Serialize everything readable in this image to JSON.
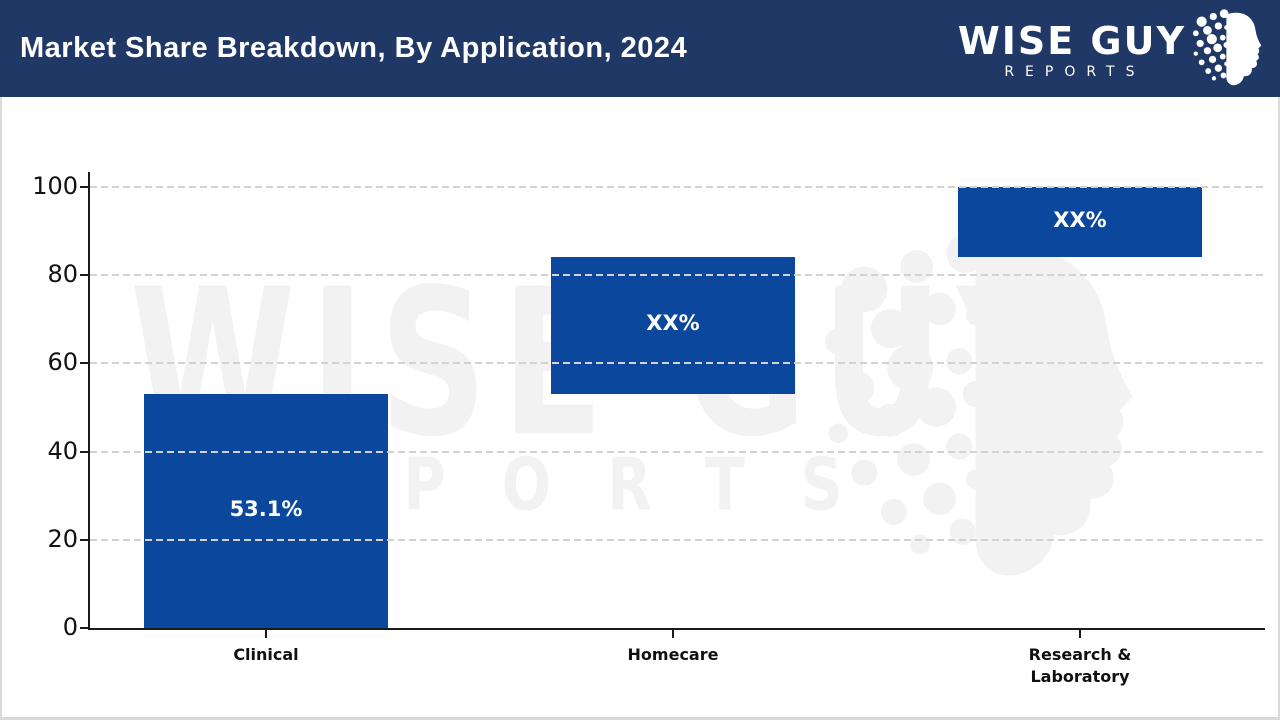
{
  "header": {
    "title": "Market Share Breakdown, By Application, 2024",
    "logo": {
      "line1": "WISE GUY",
      "line2": "REPORTS"
    }
  },
  "watermark": {
    "line1": "WISE GUY",
    "line2": "REPORTS"
  },
  "colors": {
    "header_bg": "#1f3866",
    "bar_blue": "#0a479d",
    "grid_gray": "#d2d2d2",
    "watermark_gray": "#f2f2f3",
    "axis_black": "#1a1a1a"
  },
  "chart_data": {
    "type": "bar",
    "subtype": "floating_stacked_segments",
    "title": "Market Share Breakdown, By Application, 2024",
    "categories": [
      "Clinical",
      "Homecare",
      "Research &\nLaboratory"
    ],
    "segments": [
      {
        "category": "Clinical",
        "start": 0,
        "end": 53.1,
        "label": "53.1%"
      },
      {
        "category": "Homecare",
        "start": 53.1,
        "end": 84.2,
        "label": "XX%"
      },
      {
        "category": "Research &\nLaboratory",
        "start": 84.2,
        "end": 100,
        "label": "XX%"
      }
    ],
    "xlabel": "",
    "ylabel": "",
    "yticks": [
      0,
      20,
      40,
      60,
      80,
      100
    ],
    "ylim": [
      0,
      103.5
    ],
    "grid": true,
    "grid_style": "dashed",
    "legend": "none",
    "bar_color": "#0a479d",
    "bar_label_color": "#ffffff"
  }
}
